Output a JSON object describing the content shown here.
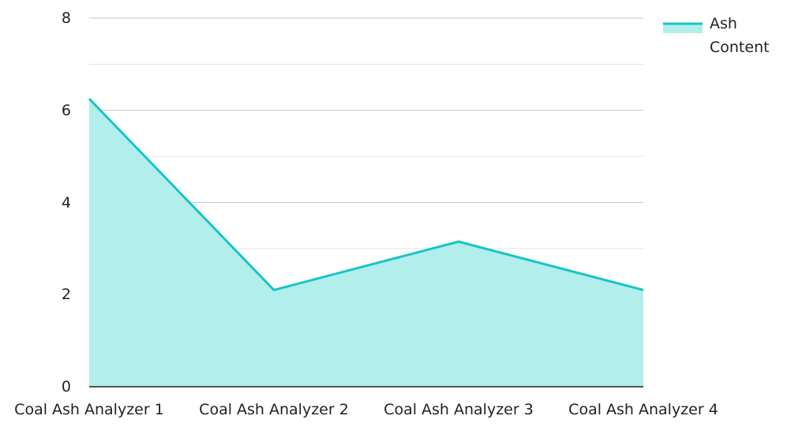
{
  "chart_data": {
    "type": "area",
    "categories": [
      "Coal Ash Analyzer 1",
      "Coal Ash Analyzer 2",
      "Coal Ash Analyzer 3",
      "Coal Ash Analyzer 4"
    ],
    "series": [
      {
        "name": "Ash Content",
        "color": "#17c5c5",
        "fill": "#b2eeec",
        "values": [
          6.25,
          2.1,
          3.15,
          2.1
        ]
      }
    ],
    "ylim": [
      0,
      8
    ],
    "yticks": [
      0,
      2,
      4,
      6,
      8
    ],
    "minor_yticks": [
      1,
      3,
      5,
      7
    ],
    "grid": true,
    "legend": "top-right"
  }
}
